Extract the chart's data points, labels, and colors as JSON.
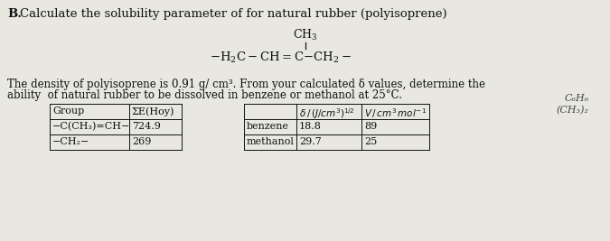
{
  "title": "B. Calculate the solubility parameter of for natural rubber (polyisoprene)",
  "title_fontsize": 9.5,
  "body_text1": "The density of polyisoprene is 0.91 g/ cm³. From your calculated δ values, determine the",
  "body_text2": "ability  of natural rubber to be dissolved in benzene or methanol at 25°C.",
  "side_note1": "C₆H₆",
  "side_note2": "(CH₃)₂",
  "table1_headers": [
    "Group",
    "ΣE(Hoy)"
  ],
  "table1_row1_col1": "−C(CH₃)=CH−",
  "table1_row1_col2": "724.9",
  "table1_row2_col1": "−CH₂−",
  "table1_row2_col2": "269",
  "table2_header_col1": "",
  "table2_header_col2": "δ / (J/cm³)¹/²",
  "table2_header_col3": "V / cm³ mol⁻¹",
  "table2_row1": [
    "benzene",
    "18.8",
    "89"
  ],
  "table2_row2": [
    "methanol",
    "29.7",
    "25"
  ],
  "bg_color": "#e8e8e0",
  "text_color": "#111111",
  "fontsize_body": 8.5,
  "fontsize_table": 8.0,
  "fontsize_struct": 9.0
}
